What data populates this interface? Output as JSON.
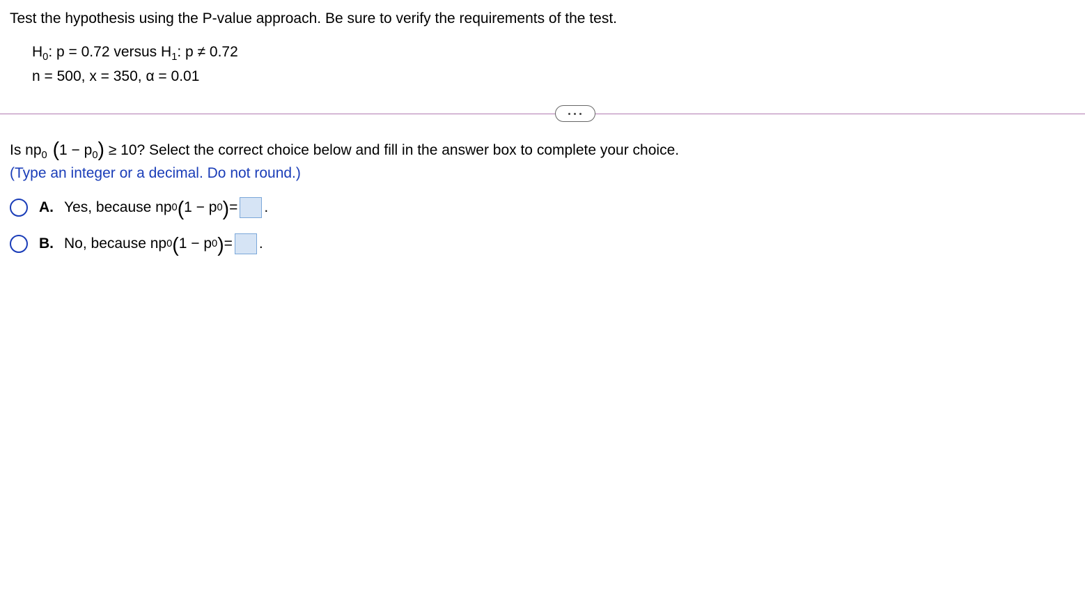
{
  "prompt": "Test the hypothesis using the P-value approach. Be sure to verify the requirements of the test.",
  "given": {
    "line1_pre": "H",
    "line1_sub0": "0",
    "line1_mid": ": p = 0.72 versus H",
    "line1_sub1": "1",
    "line1_post": ": p ≠ 0.72",
    "line2": "n = 500, x = 350, α = 0.01"
  },
  "question": {
    "pre": "Is np",
    "sub0a": "0",
    "open": " (",
    "mid": "1 − p",
    "sub0b": "0",
    "close": ")",
    "post": " ≥ 10? Select the correct choice below and fill in the answer box to complete your choice."
  },
  "hint": "(Type an integer or a decimal. Do not round.)",
  "options": {
    "A": {
      "letter": "A.",
      "pre": "Yes, because np",
      "sub0a": "0",
      "open": " (",
      "mid": "1 − p",
      "sub0b": "0",
      "close": ")",
      "eq": " = ",
      "period": "."
    },
    "B": {
      "letter": "B.",
      "pre": "No, because np",
      "sub0a": "0",
      "open": " (",
      "mid": "1 − p",
      "sub0b": "0",
      "close": ")",
      "eq": " = ",
      "period": "."
    }
  }
}
